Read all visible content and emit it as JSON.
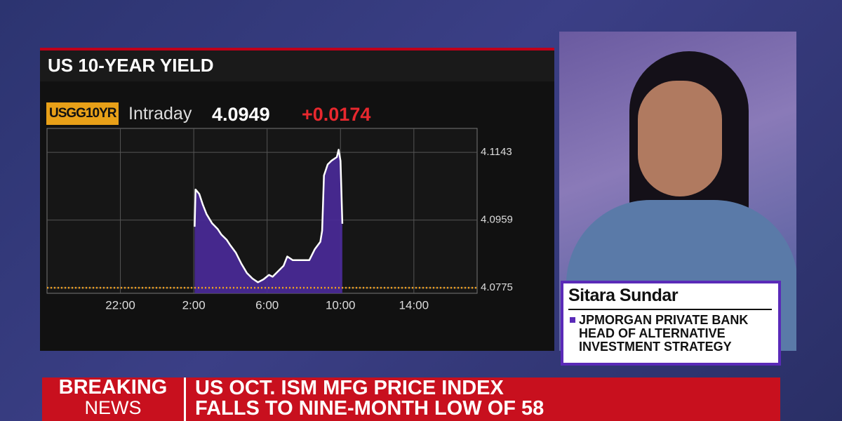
{
  "header": {
    "title": "US 10-YEAR YIELD"
  },
  "quote": {
    "ticker": "USGG10YR",
    "label": "Intraday",
    "last": "4.0949",
    "change": "+0.0174"
  },
  "chart_data": {
    "type": "area",
    "x": [
      26.05,
      26.1,
      26.3,
      26.5,
      26.7,
      27.0,
      27.3,
      27.5,
      27.8,
      28.0,
      28.3,
      28.6,
      28.9,
      29.2,
      29.5,
      29.8,
      30.1,
      30.3,
      30.6,
      30.9,
      31.1,
      31.4,
      31.7,
      32.0,
      32.3,
      32.6,
      32.9,
      33.0,
      33.1,
      33.3,
      33.5,
      33.8,
      33.9,
      34.0,
      34.1
    ],
    "values": [
      4.0941,
      4.1042,
      4.103,
      4.1,
      4.0975,
      4.095,
      4.0935,
      4.092,
      4.0905,
      4.089,
      4.087,
      4.084,
      4.0815,
      4.08,
      4.079,
      4.0798,
      4.081,
      4.0805,
      4.082,
      4.0835,
      4.086,
      4.085,
      4.085,
      4.085,
      4.085,
      4.088,
      4.09,
      4.093,
      4.108,
      4.111,
      4.112,
      4.113,
      4.115,
      4.112,
      4.0949
    ],
    "color": "#ffffff",
    "fill": "#4a2a9a",
    "reference_value": 4.0775,
    "reference_color": "#f0a020",
    "xlim": [
      18,
      41.45
    ],
    "ylim": [
      4.076,
      4.1208
    ],
    "xticks": [
      {
        "value": 22,
        "label": "22:00"
      },
      {
        "value": 26,
        "label": "2:00"
      },
      {
        "value": 30,
        "label": "6:00"
      },
      {
        "value": 34,
        "label": "10:00"
      },
      {
        "value": 38,
        "label": "14:00"
      }
    ],
    "yticks": [
      4.0775,
      4.0959,
      4.1143
    ],
    "grid": true
  },
  "guest": {
    "name": "Sitara Sundar",
    "lines": [
      "JPMORGAN PRIVATE BANK",
      "HEAD OF ALTERNATIVE",
      "INVESTMENT STRATEGY"
    ]
  },
  "ticker_bar": {
    "label": [
      "BREAKING",
      "NEWS"
    ],
    "headline": [
      "US OCT. ISM MFG PRICE INDEX",
      "FALLS TO NINE-MONTH LOW OF 58"
    ]
  }
}
